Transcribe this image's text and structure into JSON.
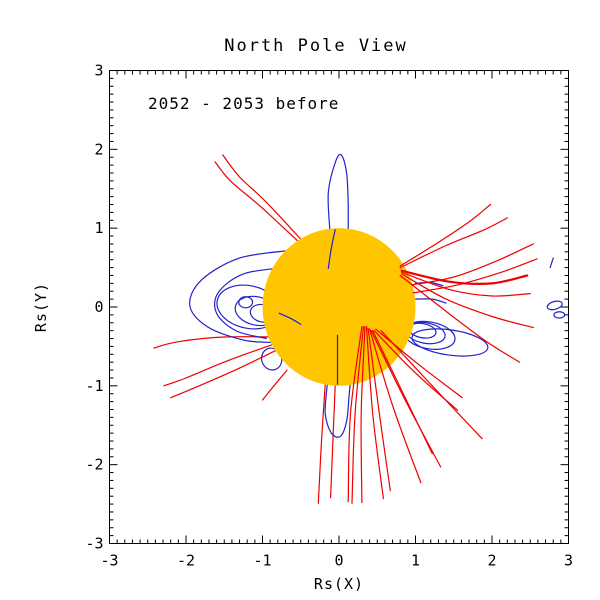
{
  "figure": {
    "title": "North Pole View",
    "annotation": "2052 - 2053 before",
    "xlabel": "Rs(X)",
    "ylabel": "Rs(Y)"
  },
  "chart_data": {
    "type": "line",
    "title": "North Pole View",
    "annotation": "2052 - 2053 before",
    "xlabel": "Rs(X)",
    "ylabel": "Rs(Y)",
    "xlim": [
      -3,
      3
    ],
    "ylim": [
      -3,
      3
    ],
    "xticks": [
      -3,
      -2,
      -1,
      0,
      1,
      2,
      3
    ],
    "yticks": [
      -3,
      -2,
      -1,
      0,
      1,
      2,
      3
    ],
    "xtick_labels": [
      "-3",
      "-2",
      "-1",
      "0",
      "1",
      "2",
      "3"
    ],
    "ytick_labels": [
      "-3",
      "-2",
      "-1",
      "0",
      "1",
      "2",
      "3"
    ],
    "minor_tick_step": 0.1,
    "grid": false,
    "legend": null,
    "colors": {
      "sun": "#ffc600",
      "open_field": "#ee0000",
      "closed_field": "#2222cc",
      "axis": "#000000",
      "background": "#ffffff"
    },
    "sun": {
      "cx": 0,
      "cy": 0,
      "radius": 1
    },
    "series": [
      {
        "name": "open-upper-left-1",
        "color": "red",
        "group": "upper-left-pair",
        "layer": "back",
        "points": [
          [
            -0.5,
            0.86
          ],
          [
            -0.95,
            1.33
          ],
          [
            -1.3,
            1.65
          ],
          [
            -1.52,
            1.93
          ]
        ]
      },
      {
        "name": "open-upper-left-2",
        "color": "red",
        "group": "upper-left-pair",
        "layer": "back",
        "points": [
          [
            -0.52,
            0.82
          ],
          [
            -1.02,
            1.27
          ],
          [
            -1.42,
            1.6
          ],
          [
            -1.62,
            1.84
          ]
        ]
      },
      {
        "name": "open-left-fan-1",
        "color": "red",
        "group": "left-fan",
        "layer": "back",
        "points": [
          [
            -0.8,
            -0.38
          ],
          [
            -1.5,
            -0.38
          ],
          [
            -2.1,
            -0.44
          ],
          [
            -2.42,
            -0.52
          ]
        ]
      },
      {
        "name": "open-left-fan-2",
        "color": "red",
        "group": "left-fan",
        "layer": "back",
        "points": [
          [
            -0.82,
            -0.46
          ],
          [
            -1.45,
            -0.68
          ],
          [
            -2.0,
            -0.9
          ],
          [
            -2.29,
            -1.0
          ]
        ]
      },
      {
        "name": "open-left-fan-3",
        "color": "red",
        "group": "left-fan",
        "layer": "back",
        "points": [
          [
            -0.8,
            -0.54
          ],
          [
            -1.4,
            -0.82
          ],
          [
            -1.95,
            -1.05
          ],
          [
            -2.2,
            -1.15
          ]
        ]
      },
      {
        "name": "open-left-short",
        "color": "red",
        "group": "left-fan",
        "layer": "back",
        "points": [
          [
            -0.68,
            -0.8
          ],
          [
            -0.85,
            -1.0
          ],
          [
            -1.0,
            -1.18
          ]
        ]
      },
      {
        "name": "open-right-1",
        "color": "red",
        "group": "right-bundle",
        "layer": "front",
        "points": [
          [
            0.8,
            0.52
          ],
          [
            1.3,
            0.82
          ],
          [
            1.7,
            1.08
          ],
          [
            1.98,
            1.3
          ]
        ]
      },
      {
        "name": "open-right-2",
        "color": "red",
        "group": "right-bundle",
        "layer": "front",
        "points": [
          [
            0.8,
            0.5
          ],
          [
            1.4,
            0.78
          ],
          [
            1.9,
            0.98
          ],
          [
            2.2,
            1.13
          ]
        ]
      },
      {
        "name": "open-right-3",
        "color": "red",
        "group": "right-bundle",
        "layer": "front",
        "points": [
          [
            0.95,
            0.28
          ],
          [
            1.5,
            0.38
          ],
          [
            2.05,
            0.58
          ],
          [
            2.54,
            0.8
          ]
        ]
      },
      {
        "name": "open-right-4",
        "color": "red",
        "group": "right-bundle",
        "layer": "front",
        "points": [
          [
            0.97,
            0.18
          ],
          [
            1.55,
            0.28
          ],
          [
            2.12,
            0.44
          ],
          [
            2.59,
            0.61
          ]
        ]
      },
      {
        "name": "open-right-5-thick",
        "color": "red",
        "group": "right-bundle",
        "layer": "front",
        "width": 2.2,
        "points": [
          [
            0.82,
            0.46
          ],
          [
            1.45,
            0.32
          ],
          [
            2.0,
            0.3
          ],
          [
            2.46,
            0.4
          ]
        ]
      },
      {
        "name": "open-right-6",
        "color": "red",
        "group": "right-bundle",
        "layer": "front",
        "points": [
          [
            0.82,
            0.44
          ],
          [
            1.45,
            0.22
          ],
          [
            2.0,
            0.14
          ],
          [
            2.5,
            0.17
          ]
        ]
      },
      {
        "name": "open-right-7",
        "color": "red",
        "group": "right-bundle",
        "layer": "front",
        "points": [
          [
            0.82,
            0.42
          ],
          [
            1.4,
            0.1
          ],
          [
            2.0,
            -0.12
          ],
          [
            2.54,
            -0.26
          ]
        ]
      },
      {
        "name": "open-right-8",
        "color": "red",
        "group": "right-bundle",
        "layer": "front",
        "points": [
          [
            0.8,
            0.4
          ],
          [
            1.3,
            0.02
          ],
          [
            1.9,
            -0.42
          ],
          [
            2.36,
            -0.7
          ]
        ]
      },
      {
        "name": "open-bottom-1",
        "color": "red",
        "group": "bottom-fan",
        "layer": "back",
        "points": [
          [
            -0.18,
            -0.98
          ],
          [
            -0.23,
            -1.72
          ],
          [
            -0.27,
            -2.49
          ]
        ]
      },
      {
        "name": "open-bottom-2",
        "color": "red",
        "group": "bottom-fan",
        "layer": "back",
        "points": [
          [
            -0.05,
            -1.0
          ],
          [
            -0.08,
            -1.7
          ],
          [
            -0.11,
            -2.42
          ]
        ]
      },
      {
        "name": "open-bottom-3",
        "color": "red",
        "group": "bottom-fan",
        "layer": "front",
        "points": [
          [
            0.3,
            -0.25
          ],
          [
            0.15,
            -1.35
          ],
          [
            0.12,
            -2.47
          ]
        ]
      },
      {
        "name": "open-bottom-4",
        "color": "red",
        "group": "bottom-fan",
        "layer": "front",
        "points": [
          [
            0.32,
            -0.25
          ],
          [
            0.21,
            -1.35
          ],
          [
            0.17,
            -2.49
          ]
        ]
      },
      {
        "name": "open-bottom-5",
        "color": "red",
        "group": "bottom-fan",
        "layer": "front",
        "points": [
          [
            0.34,
            -0.25
          ],
          [
            0.29,
            -1.35
          ],
          [
            0.3,
            -2.48
          ]
        ]
      },
      {
        "name": "open-bottom-6",
        "color": "red",
        "group": "bottom-fan",
        "layer": "front",
        "points": [
          [
            0.36,
            -0.25
          ],
          [
            0.44,
            -1.35
          ],
          [
            0.58,
            -2.43
          ]
        ]
      },
      {
        "name": "open-bottom-7",
        "color": "red",
        "group": "bottom-fan",
        "layer": "front",
        "points": [
          [
            0.38,
            -0.27
          ],
          [
            0.52,
            -1.3
          ],
          [
            0.67,
            -2.33
          ]
        ]
      },
      {
        "name": "open-bottom-8",
        "color": "red",
        "group": "bottom-fan",
        "layer": "front",
        "points": [
          [
            0.4,
            -0.28
          ],
          [
            0.7,
            -1.25
          ],
          [
            1.07,
            -2.23
          ]
        ]
      },
      {
        "name": "open-bottom-9",
        "color": "red",
        "group": "bottom-fan",
        "layer": "front",
        "points": [
          [
            0.42,
            -0.3
          ],
          [
            0.85,
            -1.15
          ],
          [
            1.33,
            -2.03
          ]
        ]
      },
      {
        "name": "open-bottom-10",
        "color": "red",
        "group": "bottom-fan",
        "layer": "front",
        "points": [
          [
            0.44,
            -0.3
          ],
          [
            0.8,
            -1.02
          ],
          [
            1.22,
            -1.86
          ]
        ]
      },
      {
        "name": "open-lower-right-1",
        "color": "red",
        "group": "lower-right-fan",
        "layer": "front",
        "points": [
          [
            0.46,
            -0.3
          ],
          [
            0.98,
            -0.82
          ],
          [
            1.55,
            -1.31
          ]
        ]
      },
      {
        "name": "open-lower-right-2",
        "color": "red",
        "group": "lower-right-fan",
        "layer": "front",
        "points": [
          [
            0.48,
            -0.28
          ],
          [
            1.03,
            -0.72
          ],
          [
            1.61,
            -1.15
          ]
        ]
      },
      {
        "name": "open-lower-right-3",
        "color": "red",
        "group": "lower-right-fan",
        "layer": "front",
        "points": [
          [
            0.55,
            -0.3
          ],
          [
            1.2,
            -0.98
          ],
          [
            1.87,
            -1.67
          ]
        ]
      },
      {
        "name": "closed-left-outer",
        "color": "blue",
        "group": "left-loops",
        "layer": "back",
        "points": [
          [
            -0.62,
            0.72
          ],
          [
            -1.3,
            0.62
          ],
          [
            -1.8,
            0.34
          ],
          [
            -1.95,
            0.02
          ],
          [
            -1.72,
            -0.25
          ],
          [
            -1.25,
            -0.42
          ],
          [
            -0.85,
            -0.45
          ]
        ]
      },
      {
        "name": "closed-left-mid",
        "color": "blue",
        "group": "left-loops",
        "layer": "back",
        "points": [
          [
            -0.7,
            0.5
          ],
          [
            -1.25,
            0.42
          ],
          [
            -1.58,
            0.18
          ],
          [
            -1.6,
            -0.08
          ],
          [
            -1.35,
            -0.3
          ],
          [
            -0.95,
            -0.4
          ]
        ]
      },
      {
        "name": "closed-left-ellipse-1",
        "color": "blue",
        "group": "left-loops",
        "layer": "back",
        "ellipse": {
          "cx": -1.18,
          "cy": 0.0,
          "rx": 0.42,
          "ry": 0.27,
          "rot": -12
        }
      },
      {
        "name": "closed-left-ellipse-2",
        "color": "blue",
        "group": "left-loops",
        "layer": "back",
        "ellipse": {
          "cx": -1.08,
          "cy": -0.05,
          "rx": 0.28,
          "ry": 0.18,
          "rot": -12
        }
      },
      {
        "name": "closed-left-ellipse-3",
        "color": "blue",
        "group": "left-loops",
        "layer": "back",
        "ellipse": {
          "cx": -1.0,
          "cy": -0.08,
          "rx": 0.16,
          "ry": 0.11,
          "rot": -12
        }
      },
      {
        "name": "closed-left-small-circle",
        "color": "blue",
        "group": "left-loops",
        "layer": "back",
        "ellipse": {
          "cx": -1.22,
          "cy": 0.06,
          "rx": 0.09,
          "ry": 0.07,
          "rot": 0
        }
      },
      {
        "name": "closed-lower-left-loop",
        "color": "blue",
        "group": "left-loops",
        "layer": "back",
        "ellipse": {
          "cx": -0.88,
          "cy": -0.66,
          "rx": 0.13,
          "ry": 0.14,
          "rot": 20
        }
      },
      {
        "name": "closed-bottom-u-loop",
        "color": "blue",
        "group": "polar-loops",
        "layer": "back",
        "points": [
          [
            -0.15,
            -0.96
          ],
          [
            -0.18,
            -1.35
          ],
          [
            -0.1,
            -1.6
          ],
          [
            0.02,
            -1.64
          ],
          [
            0.1,
            -1.45
          ],
          [
            0.13,
            -1.15
          ],
          [
            0.15,
            -0.94
          ]
        ]
      },
      {
        "name": "closed-tall-top-loop",
        "color": "blue",
        "group": "polar-loops",
        "layer": "back",
        "points": [
          [
            -0.12,
            0.98
          ],
          [
            -0.14,
            1.45
          ],
          [
            -0.05,
            1.83
          ],
          [
            0.03,
            1.93
          ],
          [
            0.1,
            1.7
          ],
          [
            0.12,
            1.3
          ],
          [
            0.12,
            0.98
          ]
        ]
      },
      {
        "name": "closed-right-wide",
        "color": "blue",
        "group": "right-loops",
        "layer": "back",
        "ellipse": {
          "cx": 1.45,
          "cy": -0.45,
          "rx": 0.5,
          "ry": 0.16,
          "rot": -8
        }
      },
      {
        "name": "closed-right-nested-1",
        "color": "blue",
        "group": "right-loops",
        "layer": "back",
        "ellipse": {
          "cx": 1.18,
          "cy": -0.36,
          "rx": 0.34,
          "ry": 0.17,
          "rot": -10
        }
      },
      {
        "name": "closed-right-nested-2",
        "color": "blue",
        "group": "right-loops",
        "layer": "back",
        "ellipse": {
          "cx": 1.13,
          "cy": -0.33,
          "rx": 0.26,
          "ry": 0.13,
          "rot": -10
        }
      },
      {
        "name": "closed-right-nested-3",
        "color": "blue",
        "group": "right-loops",
        "layer": "back",
        "ellipse": {
          "cx": 1.09,
          "cy": -0.3,
          "rx": 0.18,
          "ry": 0.09,
          "rot": -10
        }
      },
      {
        "name": "closed-right-seg-1",
        "color": "blue",
        "group": "right-loops",
        "layer": "back",
        "points": [
          [
            1.0,
            0.3
          ],
          [
            1.2,
            0.31
          ],
          [
            1.36,
            0.27
          ]
        ]
      },
      {
        "name": "closed-right-seg-2",
        "color": "blue",
        "group": "right-loops",
        "layer": "back",
        "points": [
          [
            1.0,
            0.1
          ],
          [
            1.22,
            0.1
          ],
          [
            1.4,
            0.05
          ]
        ]
      },
      {
        "name": "closed-far-right-squiggle-1",
        "color": "blue",
        "group": "right-loops",
        "layer": "back",
        "ellipse": {
          "cx": 2.82,
          "cy": 0.02,
          "rx": 0.1,
          "ry": 0.05,
          "rot": 15
        }
      },
      {
        "name": "closed-far-right-squiggle-2",
        "color": "blue",
        "group": "right-loops",
        "layer": "back",
        "ellipse": {
          "cx": 2.88,
          "cy": -0.1,
          "rx": 0.07,
          "ry": 0.04,
          "rot": 0
        }
      },
      {
        "name": "closed-far-right-dash",
        "color": "blue",
        "group": "right-loops",
        "layer": "back",
        "points": [
          [
            2.76,
            0.5
          ],
          [
            2.8,
            0.62
          ]
        ]
      },
      {
        "name": "closed-top-leg-on-disk",
        "color": "blue",
        "group": "polar-loops",
        "layer": "front",
        "points": [
          [
            -0.05,
            0.98
          ],
          [
            -0.1,
            0.75
          ],
          [
            -0.14,
            0.49
          ]
        ]
      },
      {
        "name": "closed-bottom-leg-on-disk",
        "color": "blue",
        "group": "polar-loops",
        "layer": "front",
        "points": [
          [
            -0.02,
            -0.36
          ],
          [
            -0.02,
            -0.7
          ],
          [
            -0.02,
            -0.98
          ]
        ]
      },
      {
        "name": "closed-diagonal-on-disk",
        "color": "blue",
        "group": "left-loops",
        "layer": "front",
        "points": [
          [
            -0.78,
            -0.08
          ],
          [
            -0.62,
            -0.15
          ],
          [
            -0.5,
            -0.22
          ]
        ]
      }
    ]
  }
}
